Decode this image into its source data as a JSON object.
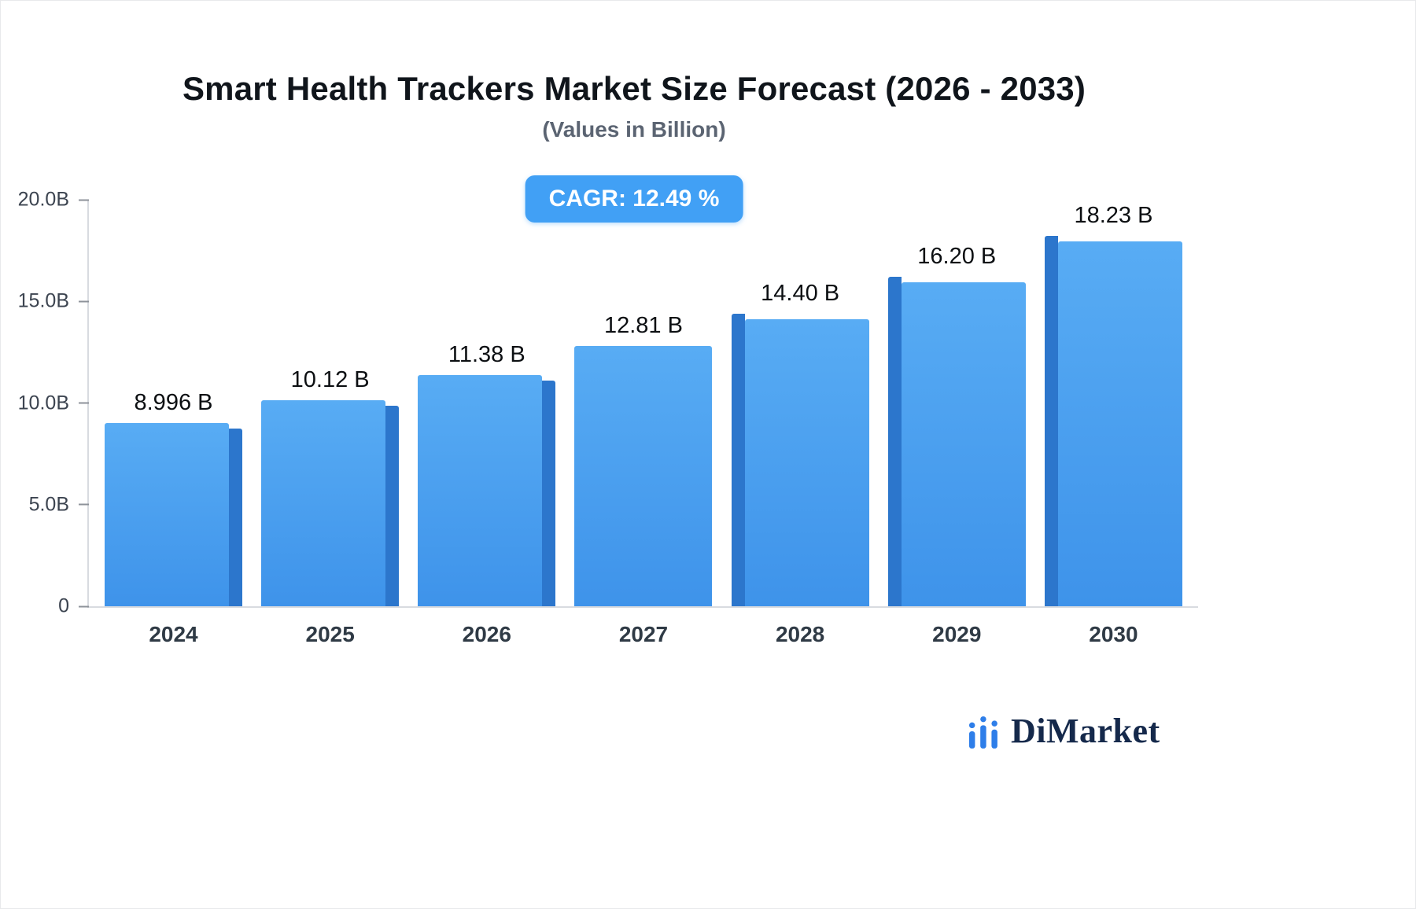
{
  "title": "Smart Health Trackers Market Size Forecast (2026 - 2033)",
  "subtitle": "(Values in Billion)",
  "badge": "CAGR: 12.49 %",
  "brand": {
    "name": "DiMarket",
    "icon_color": "#2e7ee9",
    "text_color": "#15294b"
  },
  "chart_data": {
    "type": "bar",
    "title": "Smart Health Trackers Market Size Forecast (2026 - 2033)",
    "subtitle": "(Values in Billion)",
    "cagr": "12.49 %",
    "categories": [
      "2024",
      "2025",
      "2026",
      "2027",
      "2028",
      "2029",
      "2030"
    ],
    "values": [
      8.996,
      10.12,
      11.38,
      12.81,
      14.4,
      16.2,
      18.23
    ],
    "value_labels": [
      "8.996 B",
      "10.12 B",
      "11.38 B",
      "12.81 B",
      "14.40 B",
      "16.20 B",
      "18.23 B"
    ],
    "unit": "Billion",
    "ylim": [
      0,
      20
    ],
    "ytick_labels": [
      "20.0B",
      "15.0B",
      "10.0B",
      "5.0B",
      "0"
    ],
    "grid": false,
    "legend_position": "none",
    "bar_color_top": "#58acf4",
    "bar_color_bottom": "#3e93ea",
    "bar_side_color": "#2c76cc",
    "badge_color": "#41a0f5"
  }
}
